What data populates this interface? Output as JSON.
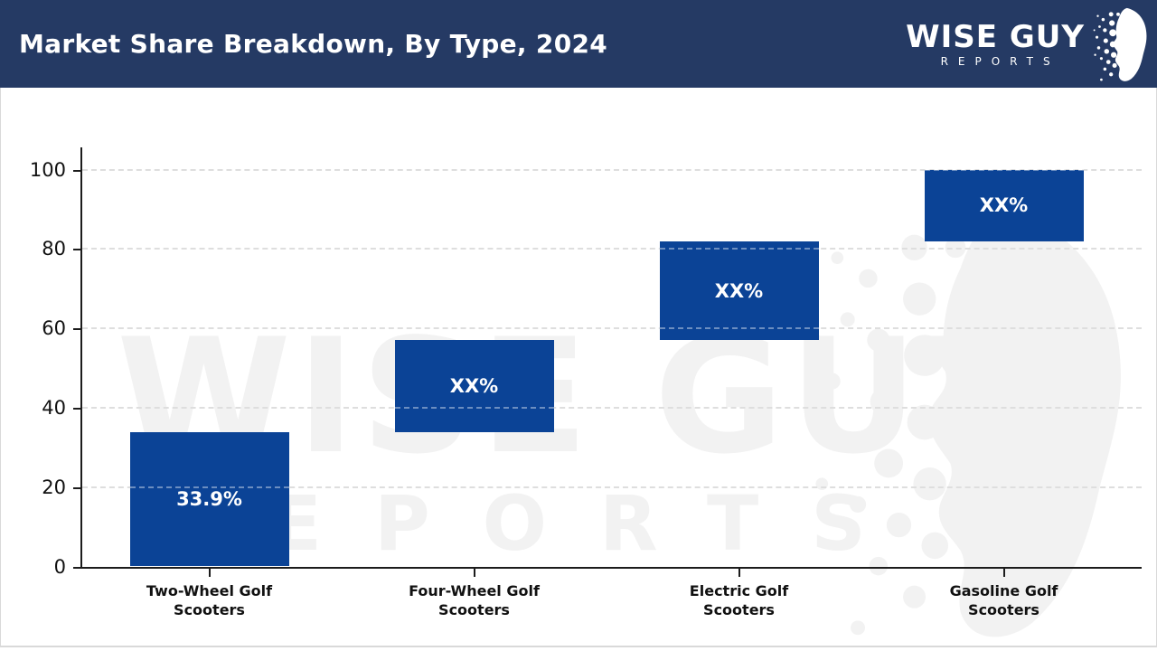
{
  "header": {
    "title": "Market Share Breakdown, By Type, 2024",
    "background": "#253a64",
    "logo": {
      "line1": "WISE GUY",
      "line2": "REPORTS"
    }
  },
  "watermark": {
    "line1": "WISE GUY",
    "line2": "REPORTS",
    "color": "#f2f2f2"
  },
  "chart_data": {
    "type": "bar",
    "subtype": "waterfall",
    "title": "Market Share Breakdown, By Type, 2024",
    "categories": [
      "Two-Wheel Golf\nScooters",
      "Four-Wheel Golf\nScooters",
      "Electric Golf\nScooters",
      "Gasoline Golf\nScooters"
    ],
    "segments": [
      {
        "start": 0,
        "end": 33.9,
        "label": "33.9%"
      },
      {
        "start": 33.9,
        "end": 57.0,
        "label": "XX%"
      },
      {
        "start": 57.0,
        "end": 81.9,
        "label": "XX%"
      },
      {
        "start": 81.9,
        "end": 100,
        "label": "XX%"
      }
    ],
    "xlabel": "",
    "ylabel": "",
    "yticks": [
      0,
      20,
      40,
      60,
      80,
      100
    ],
    "ylim": [
      0,
      100
    ],
    "grid": true,
    "grid_style": "dashed",
    "grid_color": "#dedede",
    "axis_color": "#1c1c1c",
    "bar_color": "#0b4396",
    "bar_label_color": "#ffffff",
    "legend": "none"
  }
}
